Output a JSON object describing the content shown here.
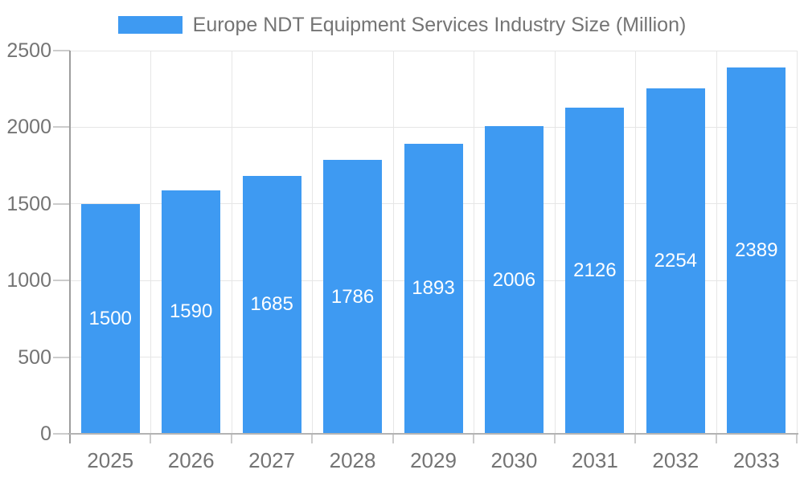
{
  "legend": {
    "label": "Europe NDT Equipment Services Industry Size (Million)"
  },
  "chart_data": {
    "type": "bar",
    "title": "Europe NDT Equipment Services Industry Size (Million)",
    "categories": [
      "2025",
      "2026",
      "2027",
      "2028",
      "2029",
      "2030",
      "2031",
      "2032",
      "2033"
    ],
    "values": [
      1500,
      1590,
      1685,
      1786,
      1893,
      2006,
      2126,
      2254,
      2389
    ],
    "value_labels": [
      "1500",
      "1590",
      "1685",
      "1786",
      "1893",
      "2006",
      "2126",
      "2254",
      "2389"
    ],
    "xlabel": "",
    "ylabel": "",
    "ylim": [
      0,
      2500
    ],
    "yticks": [
      0,
      500,
      1000,
      1500,
      2000,
      2500
    ],
    "grid": true,
    "legend_position": "top",
    "value_label_position": "inside-center"
  },
  "colors": {
    "bar": "#3e9af2",
    "axis_text": "#747474",
    "gridline": "#e6e6e6",
    "axis_line": "#9e9e9e",
    "baseline": "#b3b3b3",
    "tick": "#cccccc",
    "value_label": "#ffffff",
    "background": "#ffffff"
  }
}
